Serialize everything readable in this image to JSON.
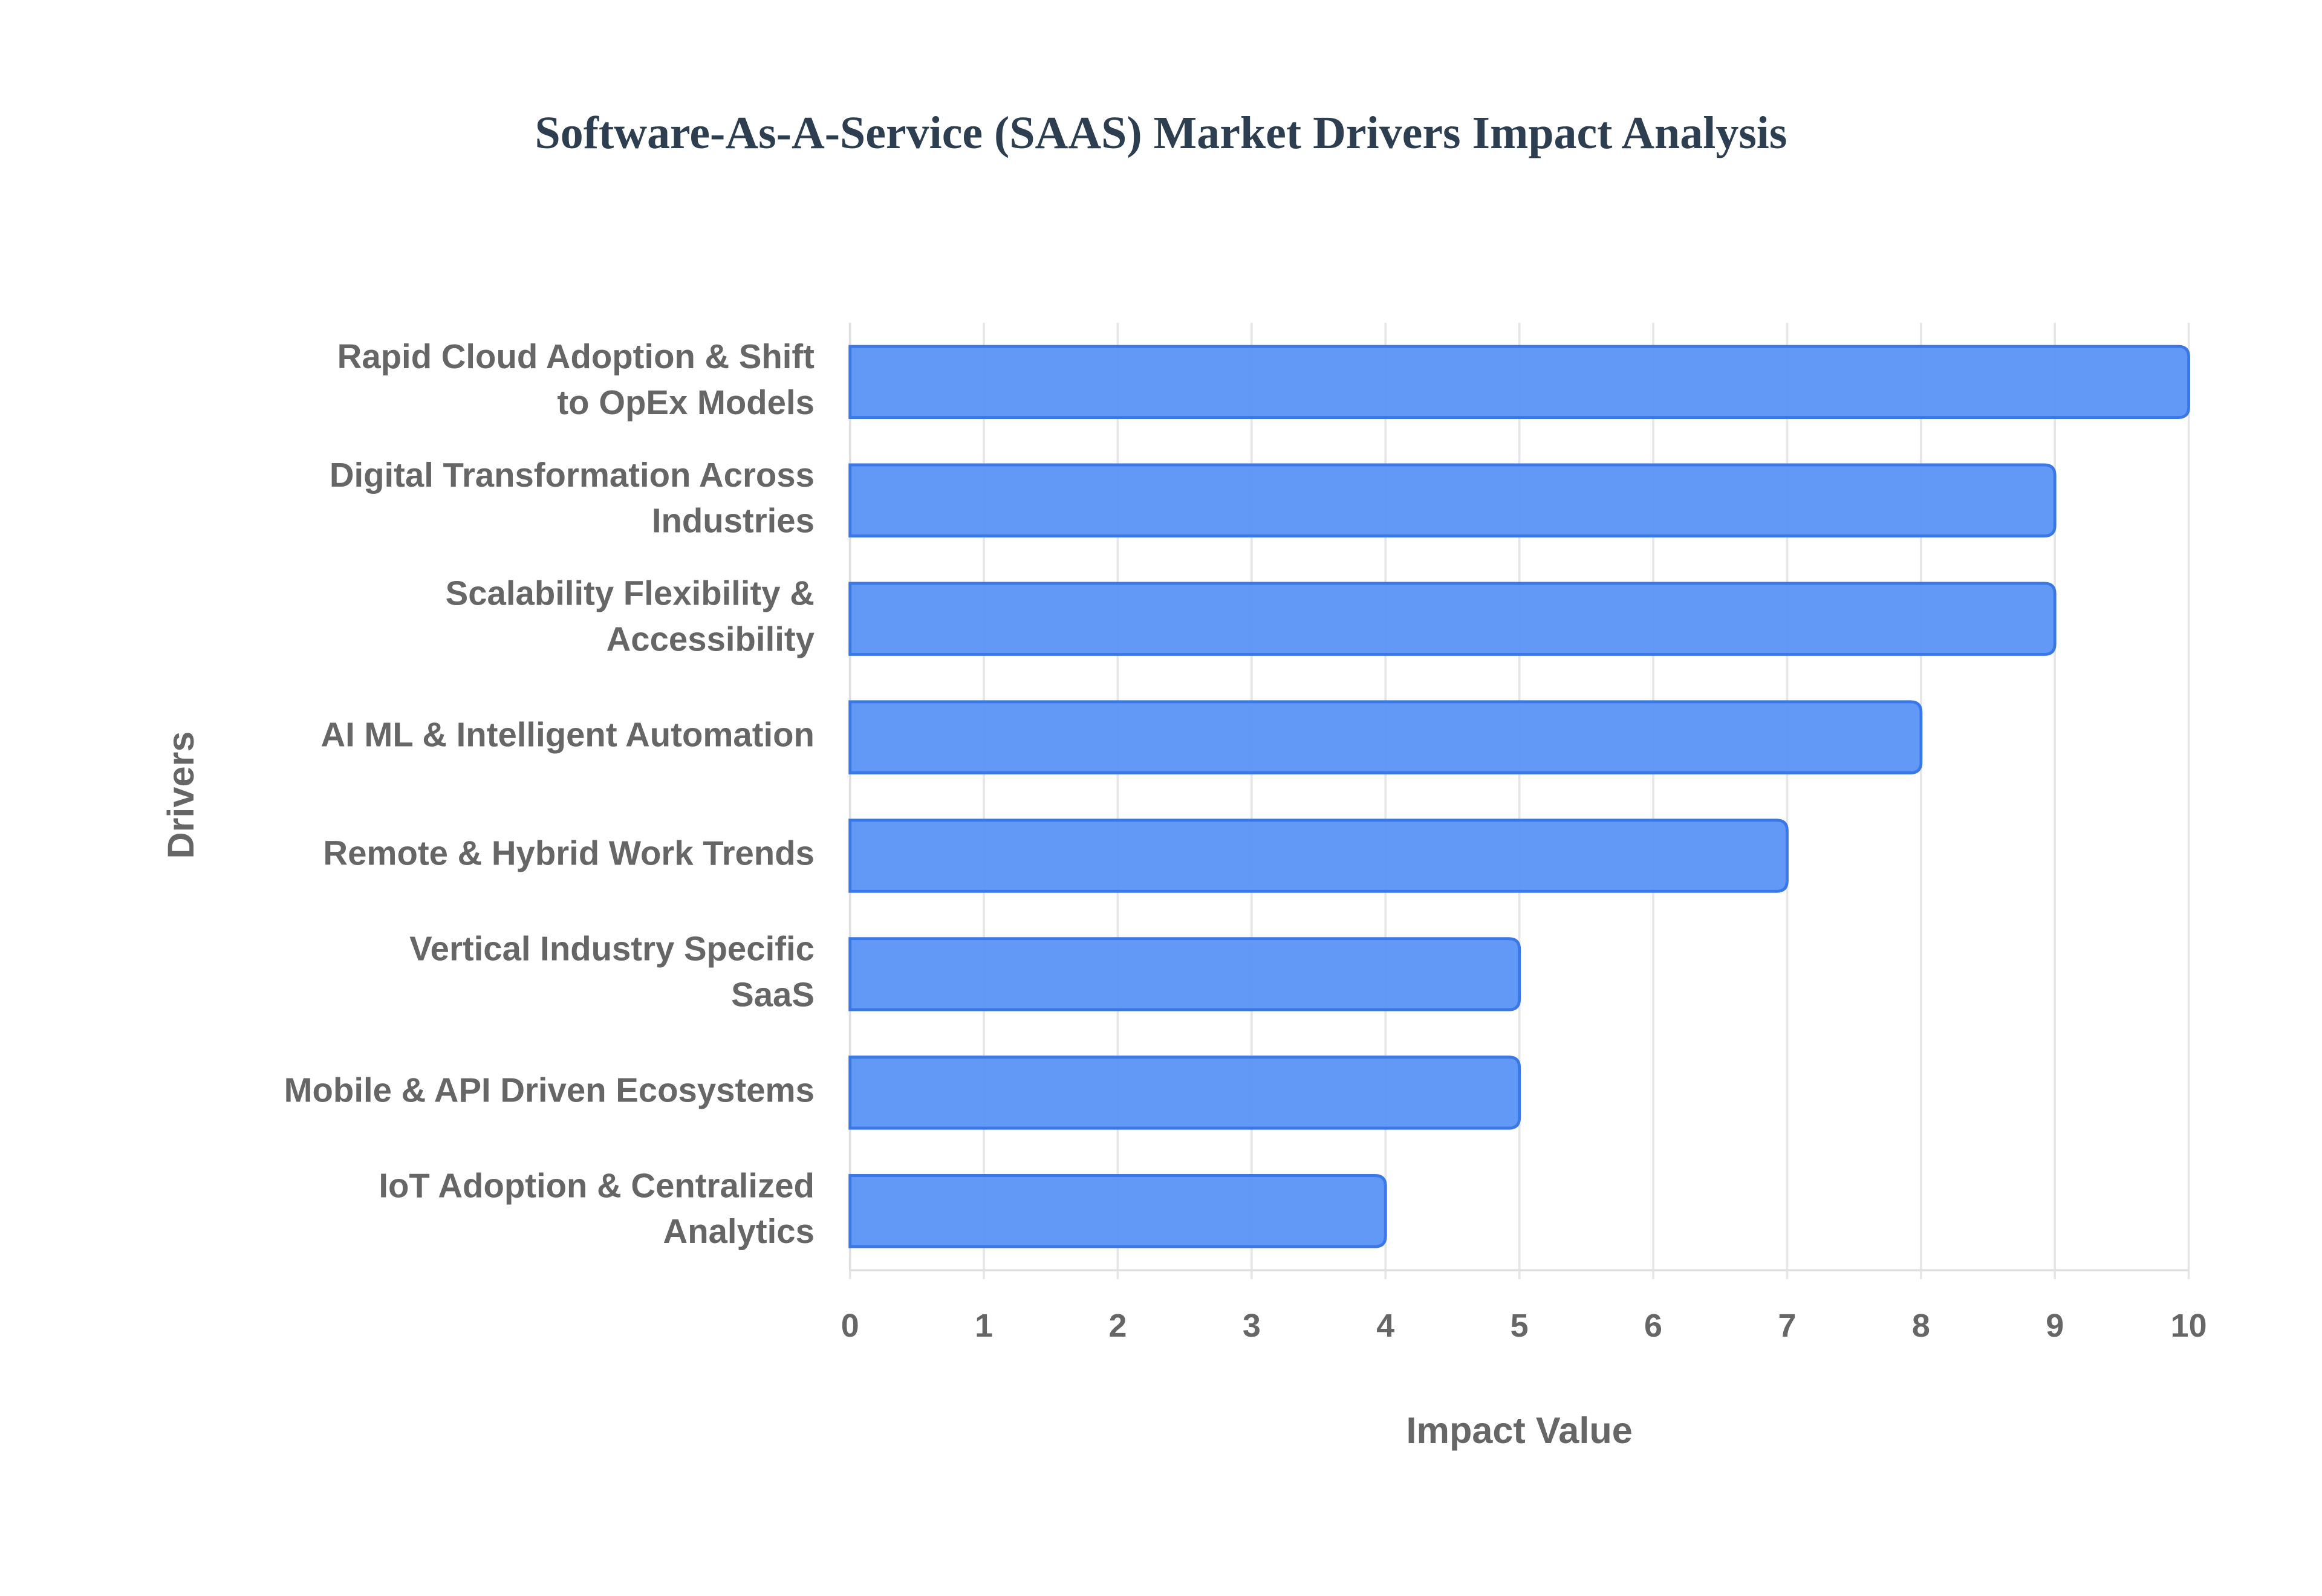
{
  "chart_data": {
    "type": "bar",
    "orientation": "horizontal",
    "title": "Software-As-A-Service (SAAS) Market Drivers Impact Analysis",
    "x_label": "Impact Value",
    "y_label": "Drivers",
    "categories": [
      "Rapid Cloud Adoption & Shift to OpEx Models",
      "Digital Transformation Across Industries",
      "Scalability Flexibility & Accessibility",
      "AI ML & Intelligent Automation",
      "Remote & Hybrid Work Trends",
      "Vertical Industry Specific SaaS",
      "Mobile & API Driven Ecosystems",
      "IoT Adoption & Centralized Analytics"
    ],
    "values": [
      10,
      9,
      9,
      8,
      7,
      5,
      5,
      4
    ],
    "color": "#5b94f5",
    "xlim": [
      0,
      10
    ],
    "xticks": [
      0,
      1,
      2,
      3,
      4,
      5,
      6,
      7,
      8,
      9,
      10
    ],
    "grid": true
  }
}
